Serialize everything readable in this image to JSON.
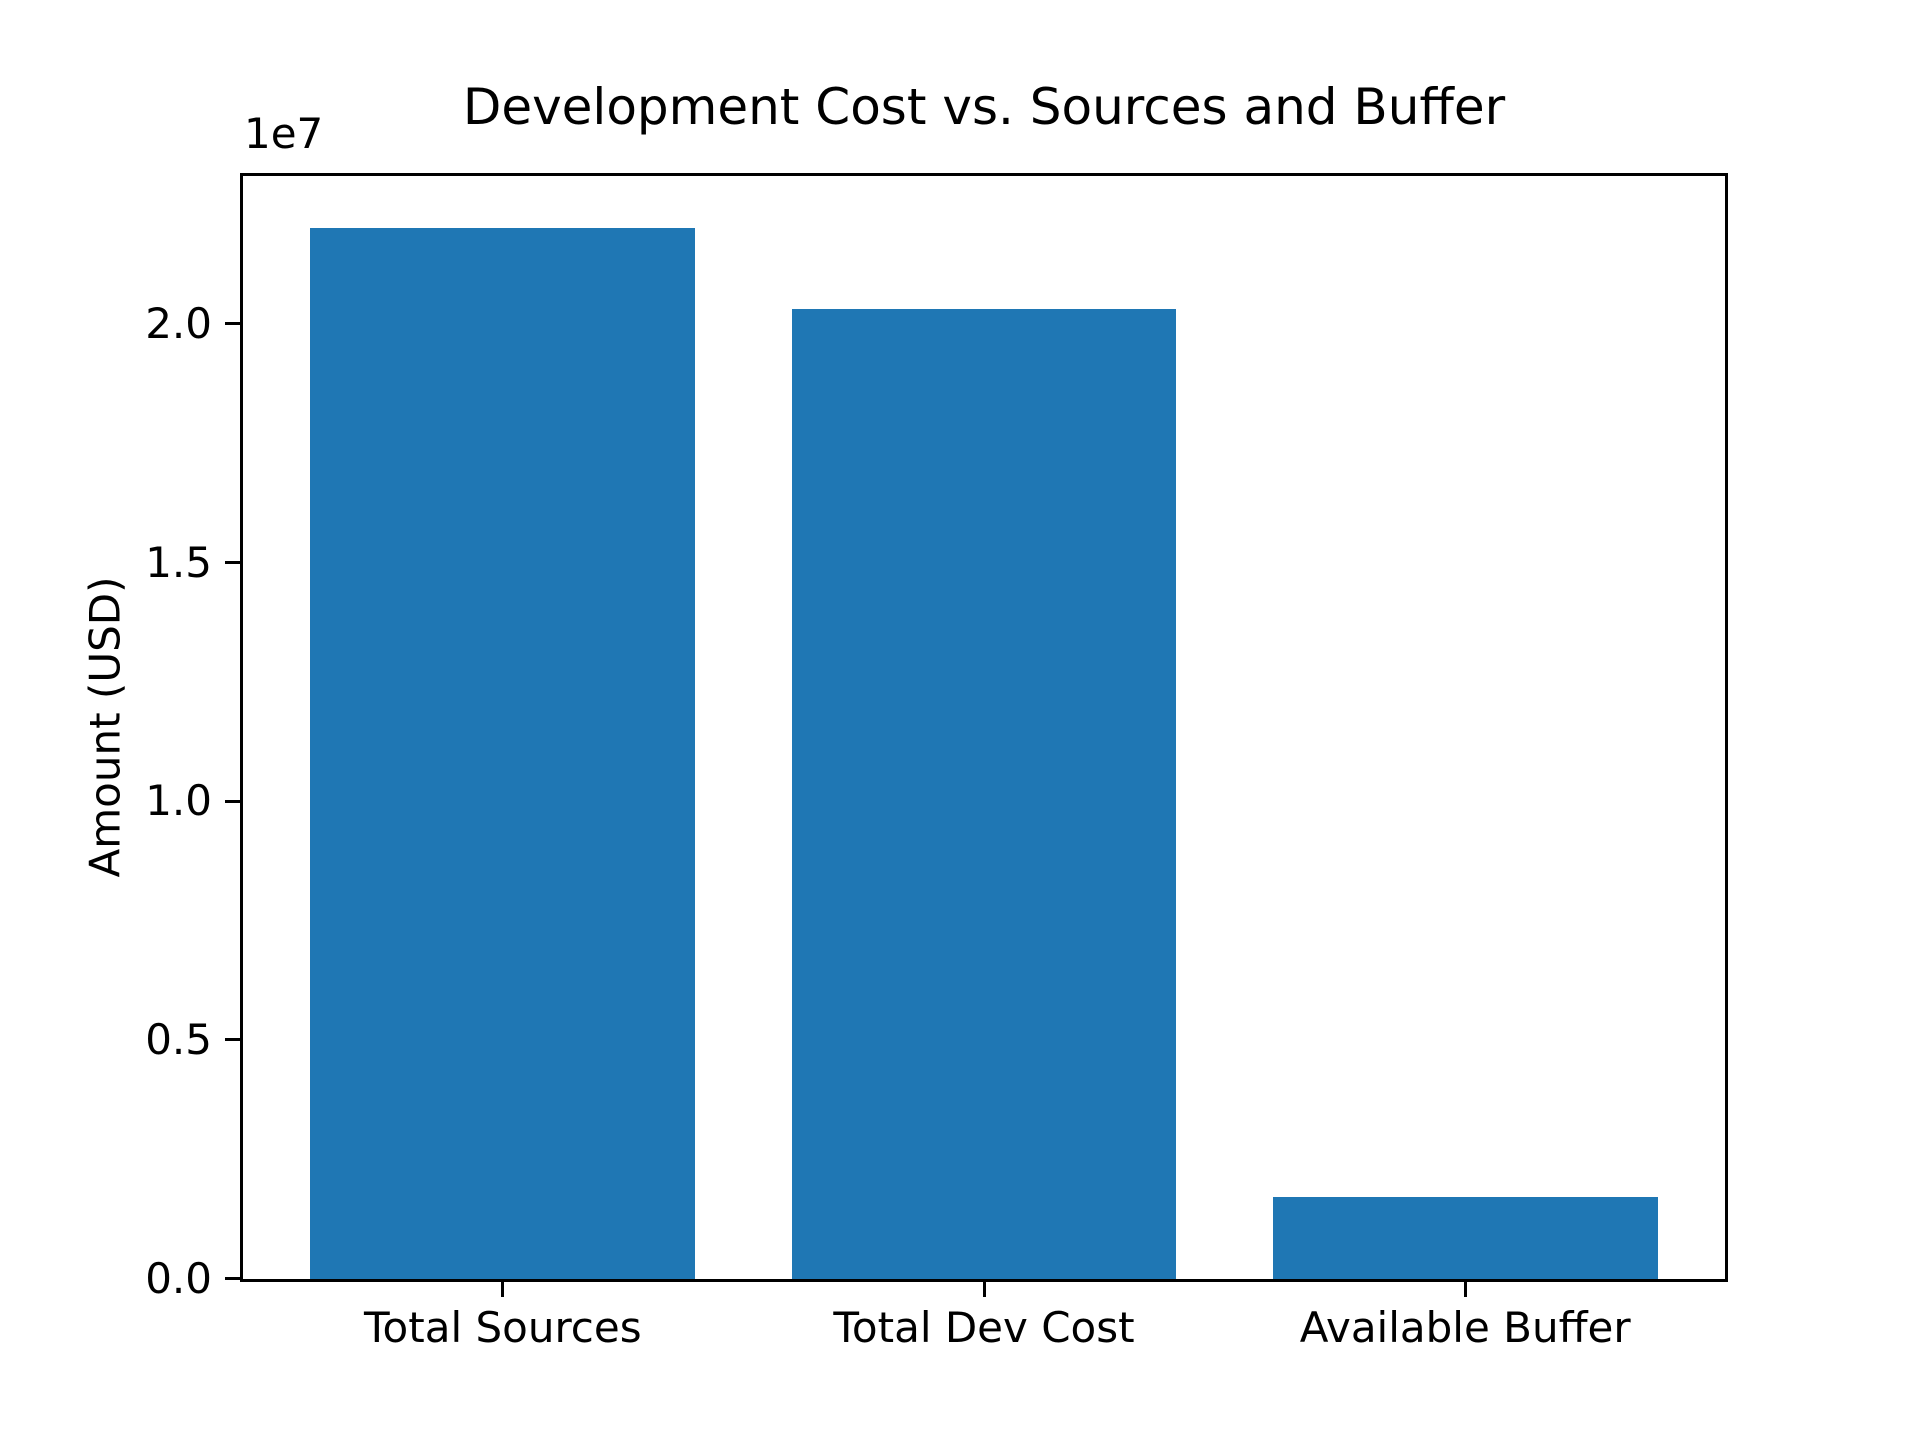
{
  "figure": {
    "background": "#ffffff"
  },
  "chart_data": {
    "type": "bar",
    "title": "Development Cost vs. Sources and Buffer",
    "categories": [
      "Total Sources",
      "Total Dev Cost",
      "Available Buffer"
    ],
    "values": [
      22000000,
      20300000,
      1700000
    ],
    "xlabel": "",
    "ylabel": "Amount (USD)",
    "ylim": [
      0,
      23100000
    ],
    "y_ticks": [
      {
        "value": 0,
        "label": "0.0"
      },
      {
        "value": 5000000,
        "label": "0.5"
      },
      {
        "value": 10000000,
        "label": "1.0"
      },
      {
        "value": 15000000,
        "label": "1.5"
      },
      {
        "value": 20000000,
        "label": "2.0"
      }
    ],
    "offset_text": "1e7",
    "bar_color": "#1f77b4",
    "axis_color": "#000000",
    "bar_width_fraction": 0.8,
    "grid": false,
    "legend": null
  }
}
